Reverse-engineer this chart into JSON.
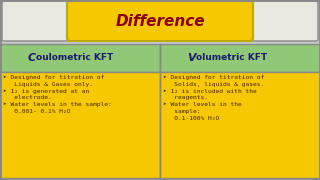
{
  "title": "Difference",
  "title_bg": "#F5C800",
  "title_color": "#8B0000",
  "title_fontsize": 11,
  "header_bg": "#90C878",
  "header_color": "#1A1A6E",
  "content_bg": "#F5C800",
  "content_color": "#4B2200",
  "border_color": "#888888",
  "outer_bg": "#C8C8C8",
  "col1_header": "Coulometric KFT",
  "col2_header": "Volumetric KFT",
  "col1_header_first": "C",
  "col2_header_first": "V",
  "col1_lines": [
    "➤ Designed for titration of",
    "   Liquids & Gases only.",
    "➤ I₂ is generated at an",
    "   electrode.",
    "➤ Water levels in the sample:",
    "   0.001- 0.1% H₂O"
  ],
  "col2_lines": [
    "➤ Designed for titration of",
    "   Solids, liquids & gases.",
    "➤ I₂ is included with the",
    "   reagents.",
    "➤ Water levels in the",
    "   sample:",
    "   0.1-100% H₂O"
  ],
  "figsize": [
    3.2,
    1.8
  ],
  "dpi": 100
}
